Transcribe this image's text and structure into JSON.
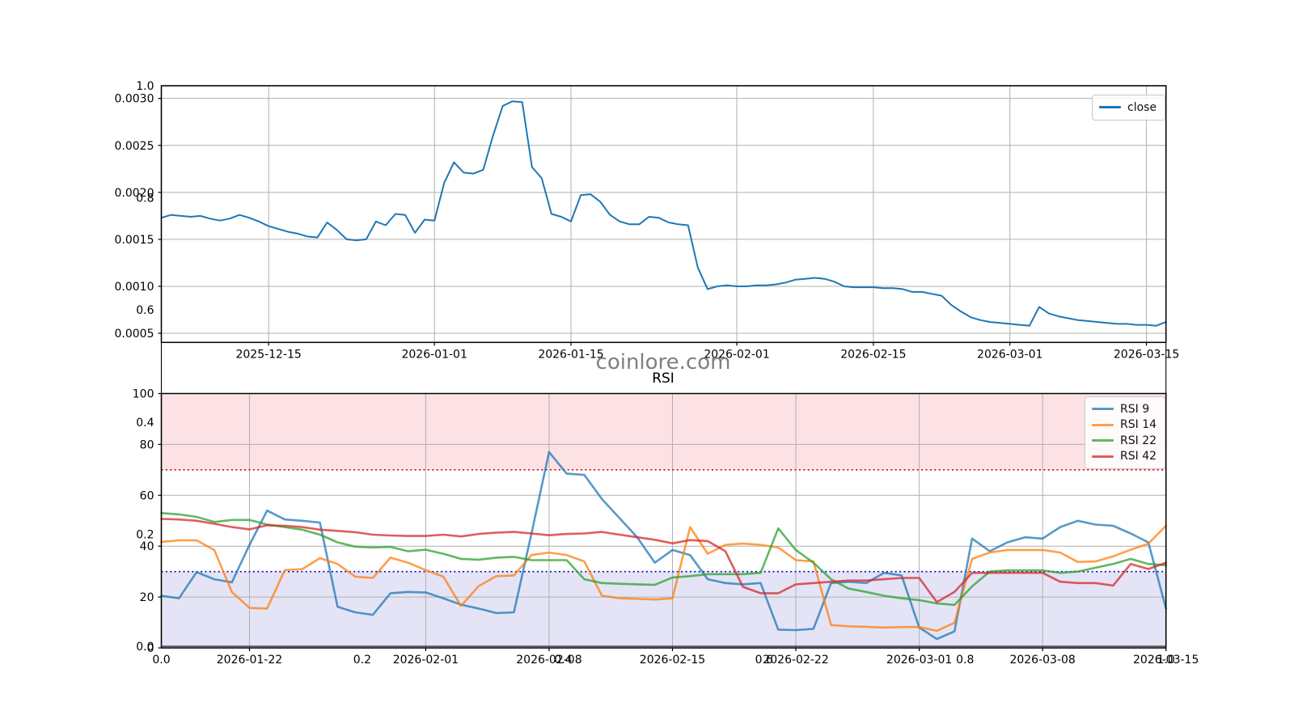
{
  "watermark": "coinlore.com",
  "overlay": {
    "x_tick_labels": [
      "0.0",
      "0.2",
      "0.4",
      "0.6",
      "0.8",
      "1.0"
    ],
    "y_tick_labels": [
      "0.0",
      "0.2",
      "0.4",
      "0.6",
      "0.8",
      "1.0"
    ]
  },
  "chart_data": [
    {
      "type": "line",
      "title": "",
      "legend_position": "upper right",
      "grid": true,
      "ylim": [
        0.000403,
        0.003135
      ],
      "y_ticks": [
        {
          "v": 0.0005,
          "label": "0.0005"
        },
        {
          "v": 0.001,
          "label": "0.0010"
        },
        {
          "v": 0.0015,
          "label": "0.0015"
        },
        {
          "v": 0.002,
          "label": "0.0020"
        },
        {
          "v": 0.0025,
          "label": "0.0025"
        },
        {
          "v": 0.003,
          "label": "0.0030"
        }
      ],
      "x_ticks": [
        {
          "i": 11,
          "label": "2025-12-15"
        },
        {
          "i": 28,
          "label": "2026-01-01"
        },
        {
          "i": 42,
          "label": "2026-01-15"
        },
        {
          "i": 59,
          "label": "2026-02-01"
        },
        {
          "i": 73,
          "label": "2026-02-15"
        },
        {
          "i": 87,
          "label": "2026-03-01"
        },
        {
          "i": 101,
          "label": "2026-03-15"
        }
      ],
      "series": [
        {
          "name": "close",
          "color": "#1f77b4",
          "opacity": 1,
          "values": [
            0.00173,
            0.00176,
            0.00175,
            0.00174,
            0.00175,
            0.00172,
            0.0017,
            0.00172,
            0.00176,
            0.00173,
            0.00169,
            0.00164,
            0.00161,
            0.00158,
            0.00156,
            0.00153,
            0.00152,
            0.00168,
            0.0016,
            0.0015,
            0.00149,
            0.0015,
            0.00169,
            0.00165,
            0.00177,
            0.00176,
            0.00157,
            0.00171,
            0.0017,
            0.0021,
            0.00232,
            0.00221,
            0.0022,
            0.00224,
            0.0026,
            0.00292,
            0.00297,
            0.00296,
            0.00227,
            0.00215,
            0.00177,
            0.00174,
            0.00169,
            0.00197,
            0.00198,
            0.0019,
            0.00176,
            0.00169,
            0.00166,
            0.00166,
            0.00174,
            0.00173,
            0.00168,
            0.00166,
            0.00165,
            0.0012,
            0.00097,
            0.001,
            0.00101,
            0.001,
            0.001,
            0.00101,
            0.00101,
            0.00102,
            0.00104,
            0.00107,
            0.00108,
            0.00109,
            0.00108,
            0.00105,
            0.001,
            0.00099,
            0.00099,
            0.00099,
            0.00098,
            0.00098,
            0.00097,
            0.00094,
            0.00094,
            0.00092,
            0.0009,
            0.0008,
            0.00073,
            0.00067,
            0.00064,
            0.00062,
            0.00061,
            0.0006,
            0.00059,
            0.00058,
            0.00078,
            0.00071,
            0.00068,
            0.00066,
            0.00064,
            0.00063,
            0.00062,
            0.00061,
            0.0006,
            0.0006,
            0.00059,
            0.00059,
            0.00058,
            0.00062
          ]
        }
      ]
    },
    {
      "type": "line",
      "title": "RSI",
      "legend_position": "upper right",
      "grid": true,
      "ylim": [
        0,
        100
      ],
      "y_ticks": [
        {
          "v": 0,
          "label": "0"
        },
        {
          "v": 20,
          "label": "20"
        },
        {
          "v": 40,
          "label": "40"
        },
        {
          "v": 60,
          "label": "60"
        },
        {
          "v": 80,
          "label": "80"
        },
        {
          "v": 100,
          "label": "100"
        }
      ],
      "x_ticks": [
        {
          "i": 5,
          "label": "2026-01-22"
        },
        {
          "i": 15,
          "label": "2026-02-01"
        },
        {
          "i": 22,
          "label": "2026-02-08"
        },
        {
          "i": 29,
          "label": "2026-02-15"
        },
        {
          "i": 36,
          "label": "2026-02-22"
        },
        {
          "i": 43,
          "label": "2026-03-01"
        },
        {
          "i": 50,
          "label": "2026-03-08"
        },
        {
          "i": 57,
          "label": "2026-03-15"
        }
      ],
      "bands": [
        {
          "from": 70,
          "to": 100,
          "color": "rgba(229,20,38,0.12)",
          "meaning": "overbought"
        },
        {
          "from": 0,
          "to": 30,
          "color": "rgba(30,30,180,0.12)",
          "meaning": "oversold"
        }
      ],
      "ref_lines": [
        {
          "y": 70,
          "color": "#cc0011",
          "style": "dotted"
        },
        {
          "y": 30,
          "color": "#0000bb",
          "style": "dotted"
        }
      ],
      "series": [
        {
          "name": "RSI 9",
          "color": "#1f77b4",
          "opacity": 0.75,
          "values": [
            20.5,
            19.5,
            29.8,
            27.0,
            25.8,
            40.5,
            54.0,
            50.5,
            50.0,
            49.3,
            16.2,
            14.0,
            13.0,
            21.5,
            22.0,
            21.8,
            19.5,
            17.0,
            15.5,
            13.7,
            14.0,
            45.0,
            77.0,
            68.5,
            68.0,
            58.5,
            51.0,
            43.5,
            33.5,
            38.5,
            36.5,
            27.0,
            25.5,
            25.0,
            25.5,
            7.2,
            7.0,
            7.5,
            25.5,
            26.0,
            25.5,
            29.5,
            28.5,
            8.0,
            3.5,
            6.5,
            43.0,
            38.0,
            41.5,
            43.5,
            43.0,
            47.5,
            50.0,
            48.5,
            48.0,
            45.0,
            41.5,
            15.5
          ]
        },
        {
          "name": "RSI 14",
          "color": "#ff7f0e",
          "opacity": 0.75,
          "values": [
            41.7,
            42.3,
            42.3,
            38.5,
            22.0,
            15.7,
            15.5,
            30.6,
            31.0,
            35.3,
            33.0,
            28.0,
            27.5,
            35.5,
            33.5,
            30.6,
            28.0,
            16.5,
            24.3,
            28.2,
            28.5,
            36.5,
            37.5,
            36.5,
            34.0,
            20.5,
            19.5,
            19.3,
            19.0,
            19.5,
            47.5,
            37.0,
            40.5,
            41.0,
            40.5,
            39.5,
            34.5,
            34.0,
            9.0,
            8.5,
            8.3,
            8.0,
            8.2,
            8.2,
            6.7,
            9.9,
            35.0,
            37.5,
            38.5,
            38.5,
            38.5,
            37.5,
            33.8,
            34.0,
            36.0,
            38.6,
            41.0,
            48.0
          ]
        },
        {
          "name": "RSI 22",
          "color": "#2ca02c",
          "opacity": 0.75,
          "values": [
            53.0,
            52.5,
            51.5,
            49.5,
            50.3,
            50.3,
            48.5,
            47.5,
            46.5,
            44.5,
            41.5,
            39.8,
            39.5,
            39.7,
            38.0,
            38.6,
            37.0,
            35.0,
            34.7,
            35.5,
            35.8,
            34.5,
            34.5,
            34.5,
            27.0,
            25.5,
            25.2,
            25.0,
            24.8,
            27.7,
            28.2,
            29.0,
            29.0,
            29.0,
            29.5,
            47.0,
            38.5,
            33.5,
            27.0,
            23.3,
            22.0,
            20.5,
            19.5,
            18.8,
            17.5,
            16.9,
            24.2,
            30.0,
            30.5,
            30.5,
            30.5,
            29.5,
            30.0,
            31.5,
            33.0,
            35.0,
            33.0,
            32.5
          ]
        },
        {
          "name": "RSI 42",
          "color": "#d62728",
          "opacity": 0.75,
          "values": [
            50.7,
            50.5,
            50.0,
            48.8,
            47.5,
            46.6,
            48.2,
            48.0,
            47.5,
            46.5,
            46.0,
            45.5,
            44.5,
            44.2,
            44.0,
            44.0,
            44.5,
            43.8,
            44.8,
            45.3,
            45.6,
            45.0,
            44.3,
            44.8,
            45.0,
            45.6,
            44.5,
            43.5,
            42.5,
            41.1,
            42.4,
            42.0,
            38.0,
            24.0,
            21.5,
            21.5,
            25.0,
            25.5,
            26.0,
            26.5,
            26.5,
            27.0,
            27.5,
            27.5,
            18.0,
            22.0,
            29.5,
            29.5,
            29.5,
            29.5,
            29.5,
            26.0,
            25.5,
            25.5,
            24.5,
            33.0,
            31.0,
            33.5
          ]
        }
      ]
    }
  ]
}
